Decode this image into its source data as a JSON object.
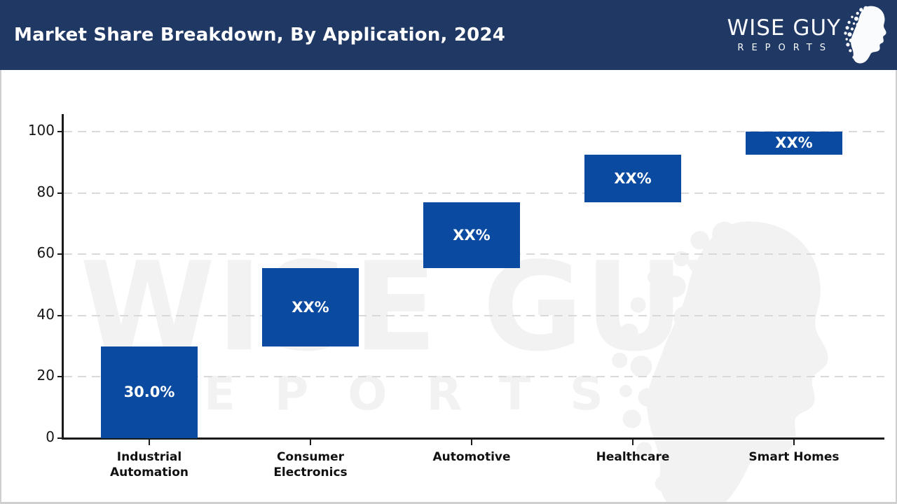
{
  "header": {
    "title": "Market Share Breakdown, By Application, 2024",
    "brand": {
      "wordmark": "WISE GUY",
      "sub": "REPORTS"
    }
  },
  "watermark": {
    "wordmark": "WISE GUY",
    "sub": "REPORTS"
  },
  "colors": {
    "header_bg": "#1F3864",
    "bar": "#0B4AA1",
    "grid": "#D9D9D9",
    "axis": "#1A1A1A",
    "tick_label": "#161616",
    "bar_label": "#FFFFFF",
    "watermark": "#F2F2F3",
    "frame_border": "#CFCFCF"
  },
  "chart_data": {
    "type": "bar",
    "variant": "floating-waterfall",
    "title": "Market Share Breakdown, By Application, 2024",
    "xlabel": "",
    "ylabel": "",
    "categories": [
      "Industrial Automation",
      "Consumer Electronics",
      "Automotive",
      "Healthcare",
      "Smart Homes"
    ],
    "segments": [
      {
        "category": "Industrial Automation",
        "start": 0,
        "end": 30,
        "label": "30.0%"
      },
      {
        "category": "Consumer Electronics",
        "start": 30,
        "end": 55.5,
        "label": "XX%"
      },
      {
        "category": "Automotive",
        "start": 55.5,
        "end": 77,
        "label": "XX%"
      },
      {
        "category": "Healthcare",
        "start": 77,
        "end": 92.5,
        "label": "XX%"
      },
      {
        "category": "Smart Homes",
        "start": 92.5,
        "end": 100,
        "label": "XX%"
      }
    ],
    "yticks": [
      0,
      20,
      40,
      60,
      80,
      100
    ],
    "ylim": [
      0,
      105
    ],
    "grid": "dashed-horizontal",
    "legend": "none"
  }
}
